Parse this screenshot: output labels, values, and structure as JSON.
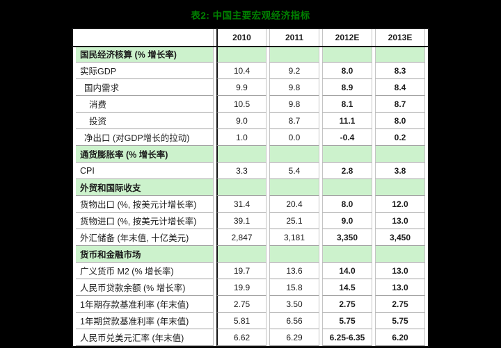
{
  "title": "表2: 中国主要宏观经济指标",
  "colors": {
    "page_bg": "#000000",
    "title_green": "#008000",
    "section_bg": "#ccf2cc",
    "grid_line": "#a3a3a3",
    "heavy_line": "#141414"
  },
  "table": {
    "columns": [
      "",
      "2010",
      "2011",
      "2012E",
      "2013E"
    ],
    "bold_value_columns": [
      "2012E",
      "2013E"
    ],
    "rows": [
      {
        "type": "section",
        "label": "国民经济核算 (% 增长率)"
      },
      {
        "type": "data",
        "indent": 0,
        "label": "实际GDP",
        "values": [
          "10.4",
          "9.2",
          "8.0",
          "8.3"
        ]
      },
      {
        "type": "data",
        "indent": 1,
        "label": "国内需求",
        "values": [
          "9.9",
          "9.8",
          "8.9",
          "8.4"
        ]
      },
      {
        "type": "data",
        "indent": 2,
        "label": "消费",
        "values": [
          "10.5",
          "9.8",
          "8.1",
          "8.7"
        ]
      },
      {
        "type": "data",
        "indent": 2,
        "label": "投资",
        "values": [
          "9.0",
          "8.7",
          "11.1",
          "8.0"
        ]
      },
      {
        "type": "data",
        "indent": 1,
        "label": "净出口 (对GDP增长的拉动)",
        "values": [
          "1.0",
          "0.0",
          "-0.4",
          "0.2"
        ]
      },
      {
        "type": "section",
        "label": "通货膨胀率 (% 增长率)"
      },
      {
        "type": "data",
        "indent": 0,
        "label": "CPI",
        "values": [
          "3.3",
          "5.4",
          "2.8",
          "3.8"
        ]
      },
      {
        "type": "section",
        "label": "外贸和国际收支"
      },
      {
        "type": "data",
        "indent": 0,
        "label": "货物出口 (%, 按美元计增长率)",
        "values": [
          "31.4",
          "20.4",
          "8.0",
          "12.0"
        ]
      },
      {
        "type": "data",
        "indent": 0,
        "label": "货物进口 (%, 按美元计增长率)",
        "values": [
          "39.1",
          "25.1",
          "9.0",
          "13.0"
        ]
      },
      {
        "type": "data",
        "indent": 0,
        "label": "外汇储备 (年末值, 十亿美元)",
        "values": [
          "2,847",
          "3,181",
          "3,350",
          "3,450"
        ]
      },
      {
        "type": "section",
        "label": "货币和金融市场"
      },
      {
        "type": "data",
        "indent": 0,
        "label": "广义货币 M2 (% 增长率)",
        "values": [
          "19.7",
          "13.6",
          "14.0",
          "13.0"
        ]
      },
      {
        "type": "data",
        "indent": 0,
        "label": "人民币贷款余额 (% 增长率)",
        "values": [
          "19.9",
          "15.8",
          "14.5",
          "13.0"
        ]
      },
      {
        "type": "data",
        "indent": 0,
        "label": "1年期存款基准利率 (年末值)",
        "values": [
          "2.75",
          "3.50",
          "2.75",
          "2.75"
        ]
      },
      {
        "type": "data",
        "indent": 0,
        "label": "1年期贷款基准利率 (年末值)",
        "values": [
          "5.81",
          "6.56",
          "5.75",
          "5.75"
        ]
      },
      {
        "type": "data",
        "indent": 0,
        "label": "人民币兑美元汇率 (年末值)",
        "values": [
          "6.62",
          "6.29",
          "6.25-6.35",
          "6.20"
        ]
      }
    ]
  }
}
